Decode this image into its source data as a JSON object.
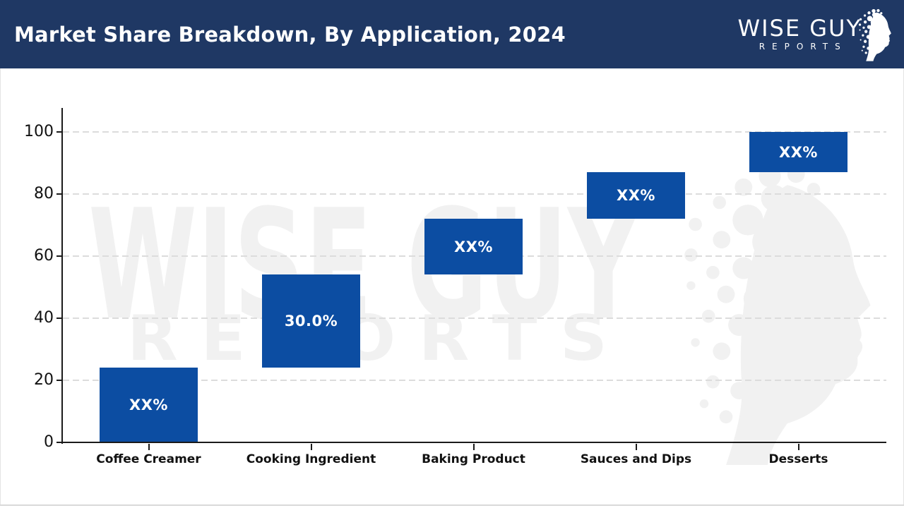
{
  "header": {
    "title": "Market Share Breakdown, By Application, 2024",
    "bg_color": "#1f3864",
    "logo": {
      "line1": "WISE GUY",
      "line2": "REPORTS"
    }
  },
  "watermark": {
    "line1": "WISE GUY",
    "line2": "R E P O R T S"
  },
  "chart_data": {
    "type": "bar",
    "subtype": "waterfall",
    "title": "Market Share Breakdown, By Application, 2024",
    "xlabel": "",
    "ylabel": "",
    "categories": [
      "Coffee Creamer",
      "Cooking Ingredient",
      "Baking Product",
      "Sauces and Dips",
      "Desserts"
    ],
    "segments": [
      {
        "category": "Coffee Creamer",
        "start": 0,
        "end": 24,
        "label": "XX%"
      },
      {
        "category": "Cooking Ingredient",
        "start": 24,
        "end": 54,
        "label": "30.0%"
      },
      {
        "category": "Baking Product",
        "start": 54,
        "end": 72,
        "label": "XX%"
      },
      {
        "category": "Sauces and Dips",
        "start": 72,
        "end": 87,
        "label": "XX%"
      },
      {
        "category": "Desserts",
        "start": 87,
        "end": 100,
        "label": "XX%"
      }
    ],
    "yticks": [
      0,
      20,
      40,
      60,
      80,
      100
    ],
    "ylim": [
      0,
      108
    ],
    "grid": "horizontal-dashed",
    "legend": "none",
    "bar_color": "#0c4da2",
    "bar_label_color": "#ffffff",
    "axis_color": "#1a1a1a",
    "gridline_color": "#dcdcdc",
    "watermark_color": "#f1f1f1"
  }
}
